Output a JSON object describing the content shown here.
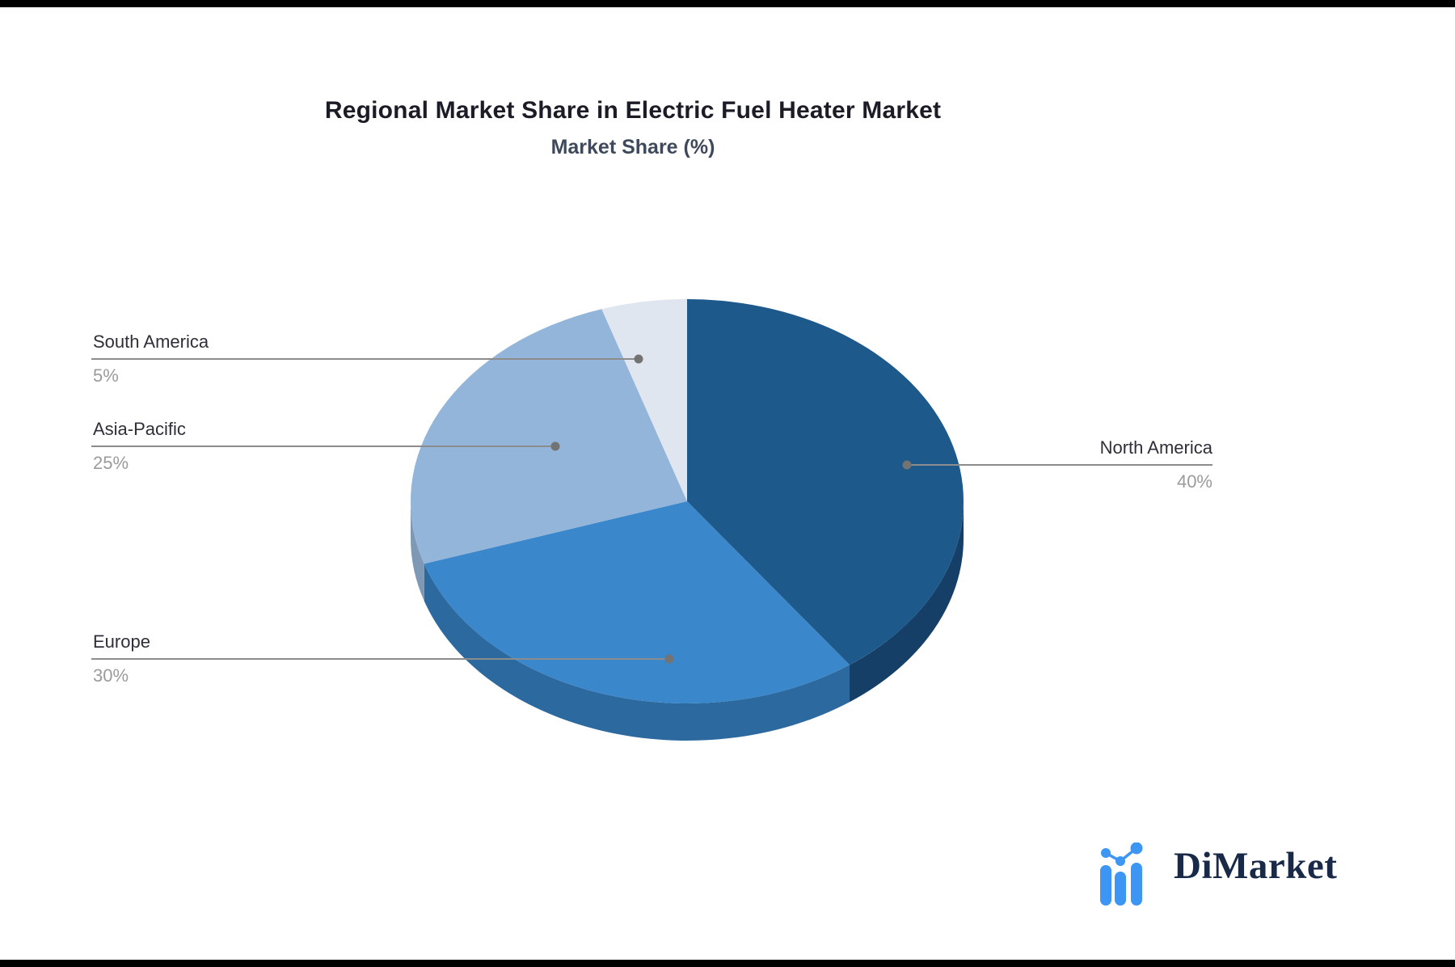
{
  "page": {
    "title": "Regional Market Share in Electric Fuel Heater Market",
    "subtitle": "Market Share (%)"
  },
  "chart_data": {
    "type": "pie",
    "effect": "3d",
    "title": "Regional Market Share in Electric Fuel Heater Market",
    "subtitle": "Market Share (%)",
    "unit": "%",
    "direction": "clockwise",
    "start_angle_deg": 0,
    "categories": [
      "North America",
      "Europe",
      "Asia-Pacific",
      "South America"
    ],
    "values": [
      40,
      30,
      25,
      5
    ],
    "labels_pct": [
      "40%",
      "30%",
      "25%",
      "5%"
    ],
    "colors": [
      "#1E598C",
      "#3A87CB",
      "#93B5D9",
      "#E0E6F0"
    ],
    "side_colors": [
      "#153F66",
      "#2C699E",
      "#7E99B5",
      "#C9D2E0"
    ],
    "callout_line_color": "#8c8c8c",
    "callout_dot_color": "#737373",
    "legend_position": "callout-labels",
    "grid": false
  },
  "logo": {
    "text": "DiMarket",
    "icon": "bar-chart-logo-icon",
    "text_color": "#182a47",
    "accent_color": "#3D96F4"
  }
}
